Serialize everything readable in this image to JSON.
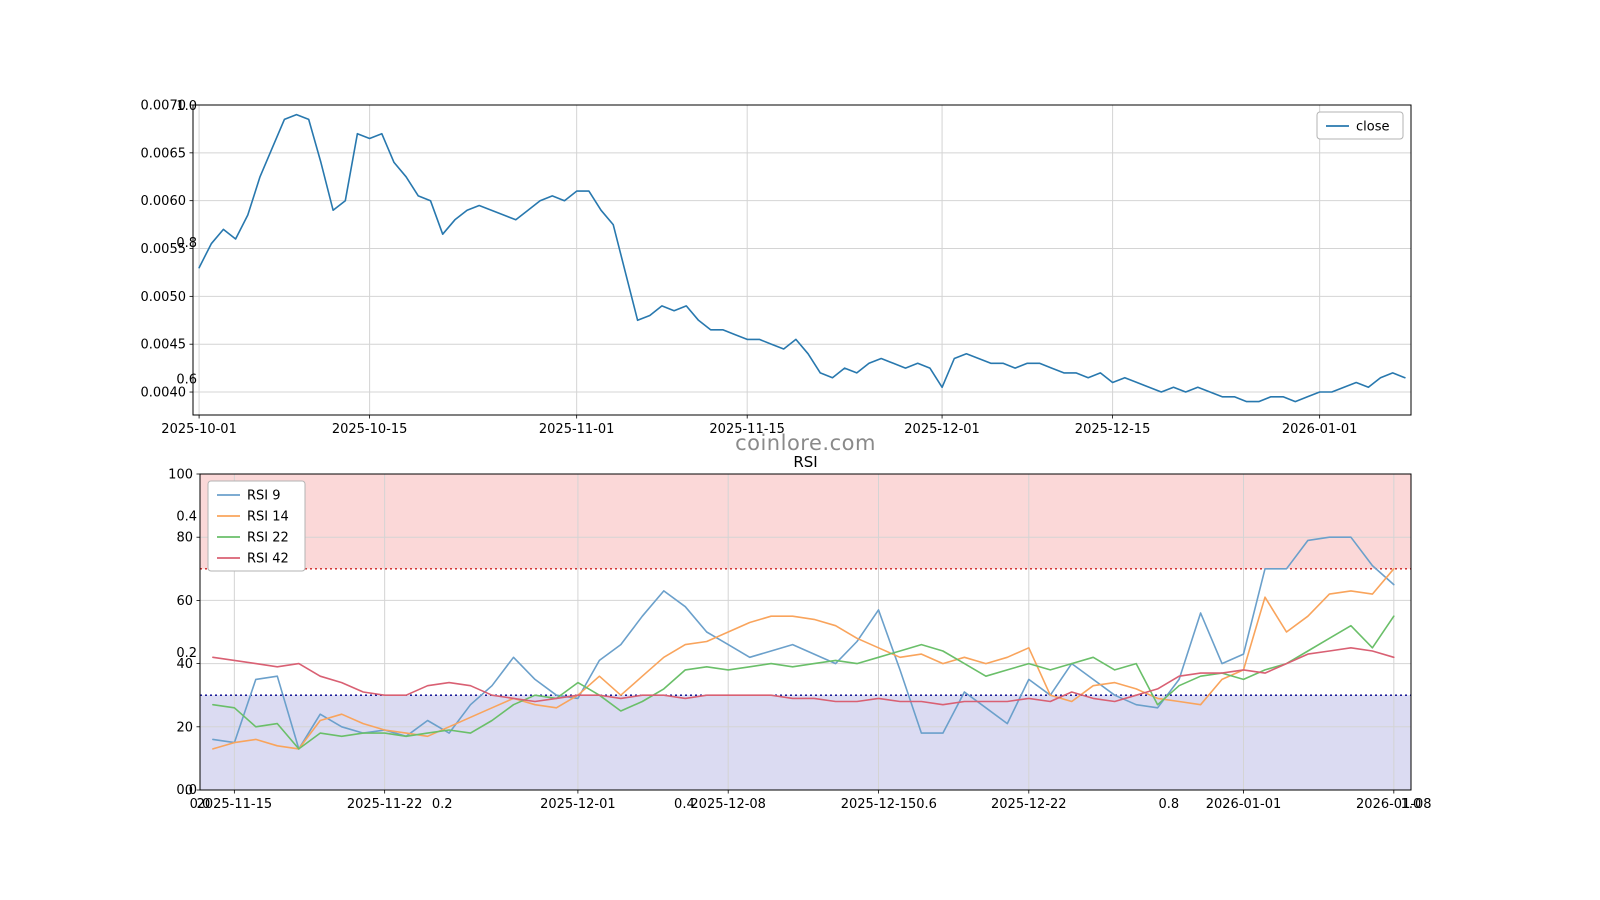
{
  "page": {
    "watermark": "coinlore.com",
    "background": "#ffffff"
  },
  "colors": {
    "grid": "#d4d4d4",
    "axis": "#000000",
    "watermark_text": "#8a8a8a",
    "legend_border": "#b3b3b3",
    "overbought_band": "#fbd8d8",
    "oversold_band": "#dbdbf2",
    "overbought_line": "#cc2222",
    "oversold_line": "#00008b"
  },
  "ghost_axis": {
    "x_labels": [
      "0.0",
      "0.2",
      "0.4",
      "0.6",
      "0.8",
      "1.0"
    ],
    "y_labels": [
      "1.0",
      "0.8",
      "0.6",
      "0.4",
      "0.2",
      "0.0"
    ]
  },
  "chart_data": [
    {
      "id": "price",
      "type": "line",
      "title": "",
      "x_start_date": "2025-10-01",
      "x_tick_labels": [
        "2025-10-01",
        "2025-10-15",
        "2025-11-01",
        "2025-11-15",
        "2025-12-01",
        "2025-12-15",
        "2026-01-01"
      ],
      "x_tick_days": [
        0,
        14,
        31,
        45,
        61,
        75,
        92
      ],
      "xlim_days": [
        -0.5,
        99.5
      ],
      "ylim": [
        0.00376,
        0.007
      ],
      "y_ticks": [
        0.004,
        0.0045,
        0.005,
        0.0055,
        0.006,
        0.0065,
        0.007
      ],
      "y_tick_labels": [
        "0.0040",
        "0.0045",
        "0.0050",
        "0.0055",
        "0.0060",
        "0.0065",
        "0.0070"
      ],
      "grid": true,
      "legend_position": "top-right",
      "series": [
        {
          "name": "close",
          "color": "#2878ae",
          "values": [
            0.0053,
            0.00555,
            0.0057,
            0.0056,
            0.00585,
            0.00625,
            0.00655,
            0.00685,
            0.0069,
            0.00685,
            0.0064,
            0.0059,
            0.006,
            0.0067,
            0.00665,
            0.0067,
            0.0064,
            0.00625,
            0.00605,
            0.006,
            0.00565,
            0.0058,
            0.0059,
            0.00595,
            0.0059,
            0.00585,
            0.0058,
            0.0059,
            0.006,
            0.00605,
            0.006,
            0.0061,
            0.0061,
            0.0059,
            0.00575,
            0.00525,
            0.00475,
            0.0048,
            0.0049,
            0.00485,
            0.0049,
            0.00475,
            0.00465,
            0.00465,
            0.0046,
            0.00455,
            0.00455,
            0.0045,
            0.00445,
            0.00455,
            0.0044,
            0.0042,
            0.00415,
            0.00425,
            0.0042,
            0.0043,
            0.00435,
            0.0043,
            0.00425,
            0.0043,
            0.00425,
            0.00405,
            0.00435,
            0.0044,
            0.00435,
            0.0043,
            0.0043,
            0.00425,
            0.0043,
            0.0043,
            0.00425,
            0.0042,
            0.0042,
            0.00415,
            0.0042,
            0.0041,
            0.00415,
            0.0041,
            0.00405,
            0.004,
            0.00405,
            0.004,
            0.00405,
            0.004,
            0.00395,
            0.00395,
            0.0039,
            0.0039,
            0.00395,
            0.00395,
            0.0039,
            0.00395,
            0.004,
            0.004,
            0.00405,
            0.0041,
            0.00405,
            0.00415,
            0.0042,
            0.00415
          ]
        }
      ]
    },
    {
      "id": "rsi",
      "type": "line",
      "title": "RSI",
      "x_start_date": "2025-11-14",
      "x_tick_labels": [
        "2025-11-15",
        "2025-11-22",
        "2025-12-01",
        "2025-12-08",
        "2025-12-15",
        "2025-12-22",
        "2026-01-01",
        "2026-01-08"
      ],
      "x_tick_days": [
        1,
        8,
        17,
        24,
        31,
        38,
        48,
        55
      ],
      "xlim_days": [
        -0.6,
        55.8
      ],
      "ylim": [
        0,
        100
      ],
      "y_ticks": [
        0,
        20,
        40,
        60,
        80,
        100
      ],
      "y_tick_labels": [
        "0",
        "20",
        "40",
        "60",
        "80",
        "100"
      ],
      "grid": true,
      "legend_position": "top-left",
      "bands": [
        {
          "from": 70,
          "to": 100,
          "color_key": "overbought_band"
        },
        {
          "from": 0,
          "to": 30,
          "color_key": "oversold_band"
        }
      ],
      "hlines": [
        {
          "y": 70,
          "color_key": "overbought_line"
        },
        {
          "y": 30,
          "color_key": "oversold_line"
        }
      ],
      "series": [
        {
          "name": "RSI 9",
          "color": "#6ba0cb",
          "values": [
            16,
            15,
            35,
            36,
            13,
            24,
            20,
            18,
            19,
            17,
            22,
            18,
            27,
            33,
            42,
            35,
            30,
            29,
            41,
            46,
            55,
            63,
            58,
            50,
            46,
            42,
            44,
            46,
            43,
            40,
            47,
            57,
            38,
            18,
            18,
            31,
            26,
            21,
            35,
            30,
            40,
            35,
            30,
            27,
            26,
            35,
            56,
            40,
            43,
            70,
            70,
            79,
            80,
            80,
            71,
            65
          ]
        },
        {
          "name": "RSI 14",
          "color": "#f9a45c",
          "values": [
            13,
            15,
            16,
            14,
            13,
            22,
            24,
            21,
            19,
            18,
            17,
            20,
            23,
            26,
            29,
            27,
            26,
            30,
            36,
            30,
            36,
            42,
            46,
            47,
            50,
            53,
            55,
            55,
            54,
            52,
            48,
            45,
            42,
            43,
            40,
            42,
            40,
            42,
            45,
            30,
            28,
            33,
            34,
            32,
            29,
            28,
            27,
            35,
            38,
            61,
            50,
            55,
            62,
            63,
            62,
            70
          ]
        },
        {
          "name": "RSI 22",
          "color": "#6abf69",
          "values": [
            27,
            26,
            20,
            21,
            13,
            18,
            17,
            18,
            18,
            17,
            18,
            19,
            18,
            22,
            27,
            30,
            29,
            34,
            30,
            25,
            28,
            32,
            38,
            39,
            38,
            39,
            40,
            39,
            40,
            41,
            40,
            42,
            44,
            46,
            44,
            40,
            36,
            38,
            40,
            38,
            40,
            42,
            38,
            40,
            27,
            33,
            36,
            37,
            35,
            38,
            40,
            44,
            48,
            52,
            45,
            55
          ]
        },
        {
          "name": "RSI 42",
          "color": "#d96073",
          "values": [
            42,
            41,
            40,
            39,
            40,
            36,
            34,
            31,
            30,
            30,
            33,
            34,
            33,
            30,
            29,
            28,
            29,
            30,
            30,
            29,
            30,
            30,
            29,
            30,
            30,
            30,
            30,
            29,
            29,
            28,
            28,
            29,
            28,
            28,
            27,
            28,
            28,
            28,
            29,
            28,
            31,
            29,
            28,
            30,
            32,
            36,
            37,
            37,
            38,
            37,
            40,
            43,
            44,
            45,
            44,
            42
          ]
        }
      ]
    }
  ]
}
